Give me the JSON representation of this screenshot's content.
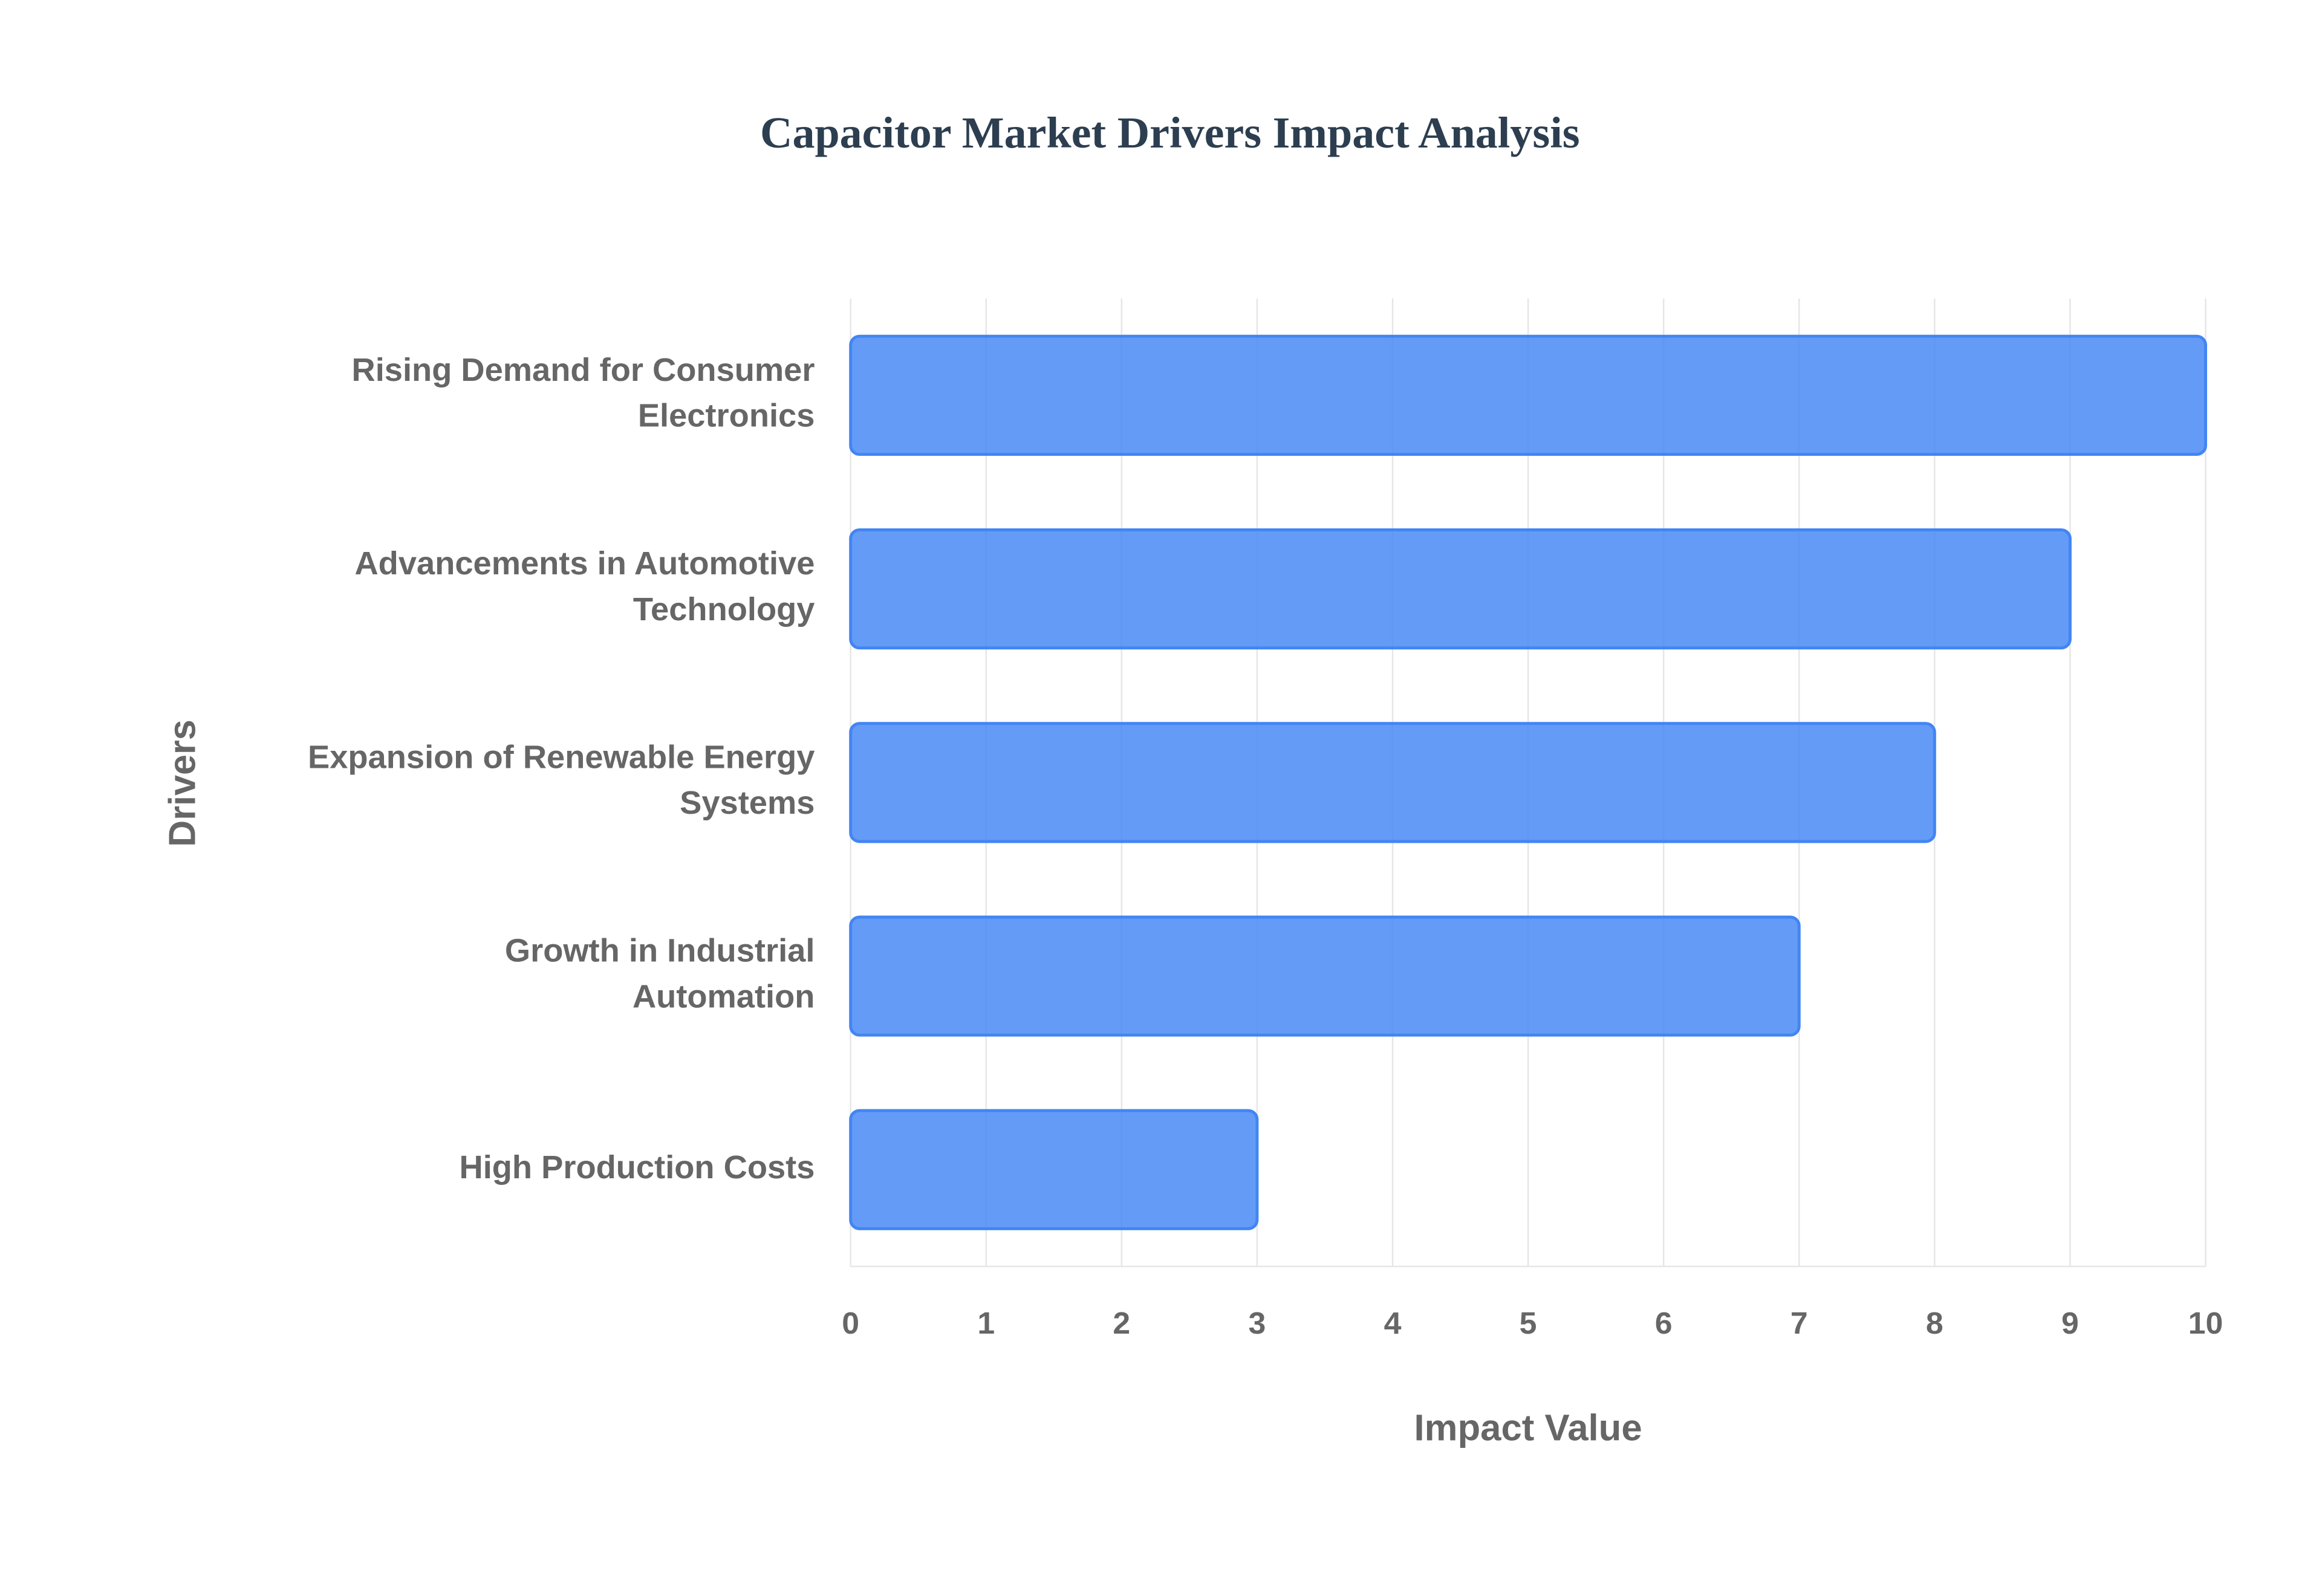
{
  "chart_data": {
    "type": "bar",
    "orientation": "horizontal",
    "title": "Capacitor Market Drivers Impact Analysis",
    "categories": [
      "Rising Demand for Consumer Electronics",
      "Advancements in Automotive Technology",
      "Expansion of Renewable Energy Systems",
      "Growth in Industrial Automation",
      "High Production Costs"
    ],
    "values": [
      10,
      9,
      8,
      7,
      3
    ],
    "color": "#4285f4",
    "x_label": "Impact Value",
    "y_label": "Drivers",
    "xlim": [
      0,
      10
    ],
    "xticks": [
      0,
      1,
      2,
      3,
      4,
      5,
      6,
      7,
      8,
      9,
      10
    ],
    "grid": true
  }
}
